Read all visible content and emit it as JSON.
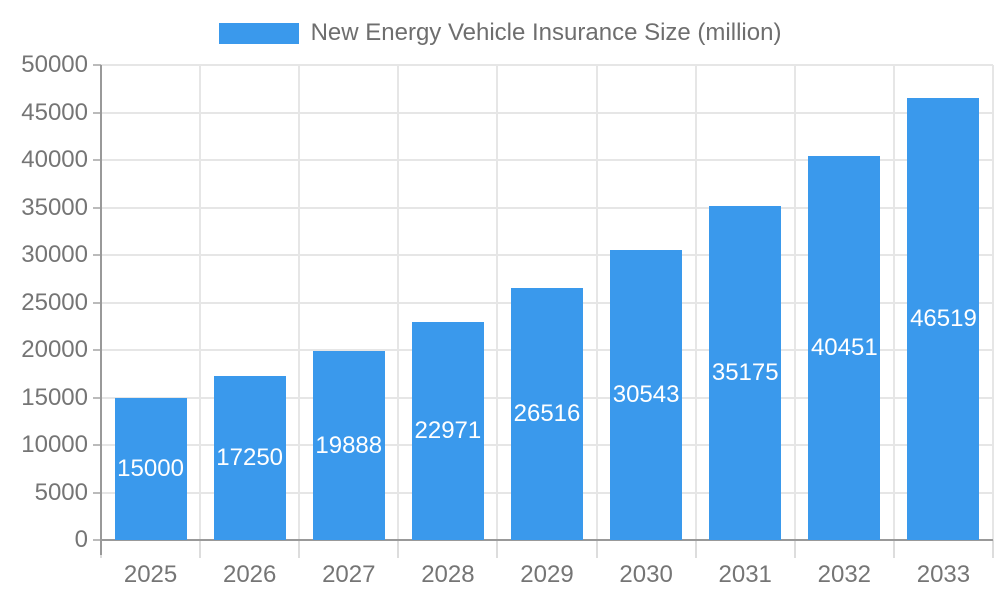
{
  "chart_data": {
    "type": "bar",
    "title": "",
    "legend": "New Energy Vehicle Insurance Size (million)",
    "legend_position": "top-center",
    "categories": [
      "2025",
      "2026",
      "2027",
      "2028",
      "2029",
      "2030",
      "2031",
      "2032",
      "2033"
    ],
    "values": [
      15000,
      17250,
      19888,
      22971,
      26516,
      30543,
      35175,
      40451,
      46519
    ],
    "series_name": "New Energy Vehicle Insurance Size (million)",
    "xlabel": "",
    "ylabel": "",
    "ylim": [
      0,
      50000
    ],
    "ytick_step": 5000,
    "ytick_labels": [
      "0",
      "5000",
      "10000",
      "15000",
      "20000",
      "25000",
      "30000",
      "35000",
      "40000",
      "45000",
      "50000"
    ],
    "grid": true,
    "value_labels_shown": true,
    "colors": {
      "bar": "#3a99ec",
      "grid": "#e6e6e6",
      "axis": "#999999",
      "tick_label": "#757575",
      "legend_text": "#6e6e6e",
      "value_label": "#ffffff",
      "background": "#ffffff"
    }
  }
}
